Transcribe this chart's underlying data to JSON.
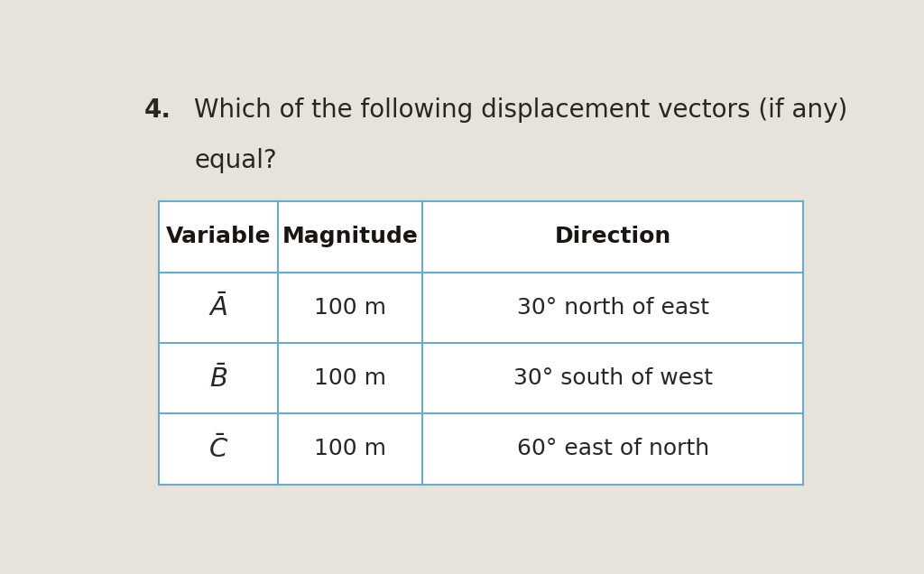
{
  "title_number": "4.",
  "title_text": "Which of the following displacement vectors (if any)",
  "title_text2": "equal?",
  "bg_color": "#d6cfc4",
  "page_color": "#e8e3da",
  "border_color": "#6aabcc",
  "text_color": "#2a2520",
  "header_color": "#1a1510",
  "columns": [
    "Variable",
    "Magnitude",
    "Direction"
  ],
  "magnitudes": [
    "100 m",
    "100 m",
    "100 m"
  ],
  "directions": [
    "30° north of east",
    "30° south of west",
    "60° east of north"
  ],
  "figsize": [
    10.24,
    6.36
  ],
  "dpi": 100,
  "title_fontsize": 20,
  "header_fontsize": 18,
  "data_fontsize": 18
}
